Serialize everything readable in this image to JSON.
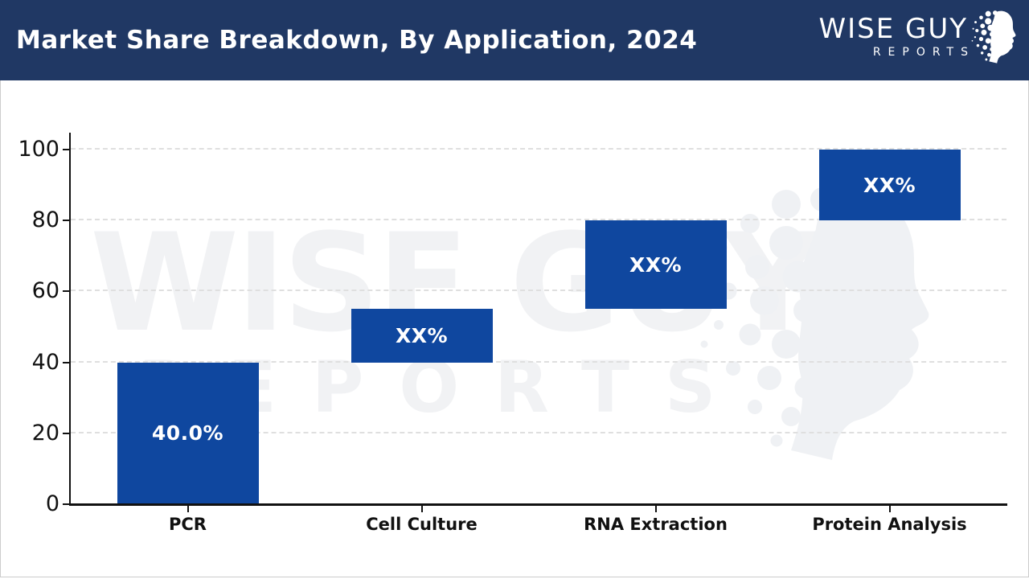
{
  "header": {
    "title": "Market Share Breakdown, By Application, 2024",
    "logo": {
      "line1": "WISE GUY",
      "line2": "REPORTS"
    }
  },
  "watermark": {
    "line1": "WISE GUY",
    "line2": "REPORTS"
  },
  "icons": {
    "logo_head": "dot-head-profile",
    "watermark_head": "dot-head-profile"
  },
  "colors": {
    "header_bg": "#203864",
    "bar": "#0F479F",
    "bar_label": "#FFFFFF",
    "axis": "#111111",
    "gridline": "#DFDFDF",
    "watermark": "#F1F2F4"
  },
  "chart_data": {
    "type": "bar",
    "variant": "waterfall",
    "title": "Market Share Breakdown, By Application, 2024",
    "categories": [
      "PCR",
      "Cell Culture",
      "RNA Extraction",
      "Protein Analysis"
    ],
    "segments": [
      {
        "category": "PCR",
        "start": 0,
        "end": 40,
        "label": "40.0%"
      },
      {
        "category": "Cell Culture",
        "start": 40,
        "end": 55,
        "label": "XX%"
      },
      {
        "category": "RNA Extraction",
        "start": 55,
        "end": 80,
        "label": "XX%"
      },
      {
        "category": "Protein Analysis",
        "start": 80,
        "end": 100,
        "label": "XX%"
      }
    ],
    "segment_sizes_pct": [
      40,
      15,
      25,
      20
    ],
    "xlabel": "",
    "ylabel": "",
    "yticks": [
      0,
      20,
      40,
      60,
      80,
      100
    ],
    "ylim": [
      0,
      100
    ],
    "grid": "dashed-horizontal",
    "legend": "none",
    "bar_color": "#0F479F",
    "bar_label_color": "#FFFFFF"
  }
}
